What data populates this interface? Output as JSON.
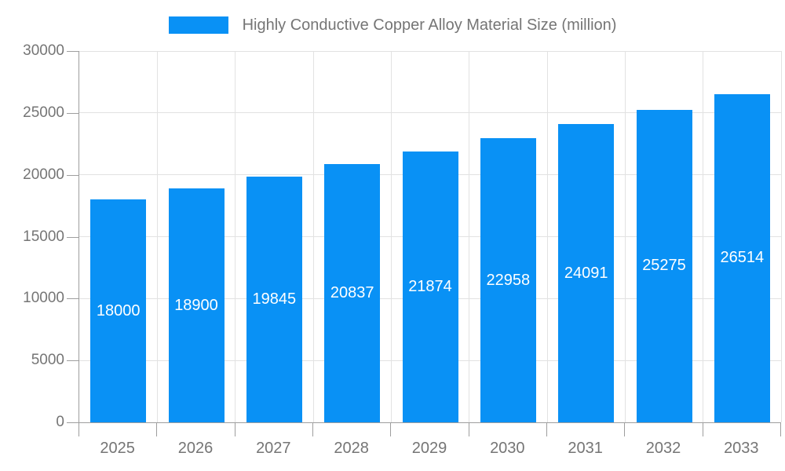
{
  "chart_data": {
    "type": "bar",
    "title": "Highly Conductive Copper Alloy Material Size (million)",
    "categories": [
      "2025",
      "2026",
      "2027",
      "2028",
      "2029",
      "2030",
      "2031",
      "2032",
      "2033"
    ],
    "values": [
      18000,
      18900,
      19845,
      20837,
      21874,
      22958,
      24091,
      25275,
      26514
    ],
    "xlabel": "",
    "ylabel": "",
    "ylim": [
      0,
      30000
    ],
    "yticks": [
      0,
      5000,
      10000,
      15000,
      20000,
      25000,
      30000
    ],
    "grid": true,
    "legend_position": "top",
    "bar_color": "#0991f5",
    "bar_label_color": "#ffffff",
    "axis_text_color": "#757575",
    "grid_color": "#e2e2e2",
    "axis_line_color": "#9e9e9e"
  },
  "legend": {
    "label": "Highly Conductive Copper Alloy Material Size (million)"
  }
}
